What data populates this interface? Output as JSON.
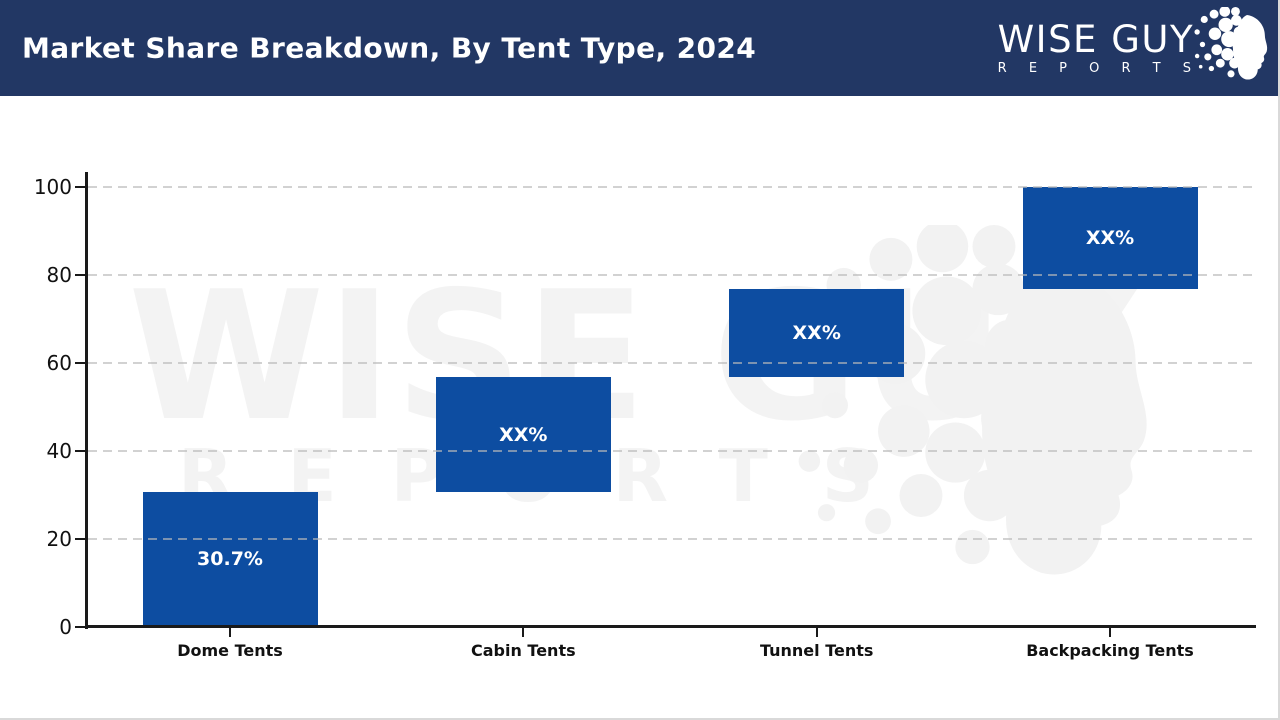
{
  "header": {
    "title": "Market Share Breakdown, By Tent Type, 2024",
    "logo": {
      "line1": "WISE GUY",
      "line2": "R E P O R T S"
    }
  },
  "watermark": {
    "line1": "WISE GUY",
    "line2": "REPORTS"
  },
  "colors": {
    "header_bg": "#223764",
    "bar": "#0d4da1",
    "bar_label_text": "#ffffff",
    "axis": "#1a1a1a",
    "grid": "#d9d9d9",
    "watermark": "#f3f3f3",
    "title_text": "#ffffff"
  },
  "chart_data": {
    "type": "bar",
    "subtype": "waterfall",
    "title": "Market Share Breakdown, By Tent Type, 2024",
    "categories": [
      "Dome Tents",
      "Cabin Tents",
      "Tunnel Tents",
      "Backpacking Tents"
    ],
    "segments": [
      {
        "category": "Dome Tents",
        "start": 0,
        "end": 30.7,
        "label": "30.7%"
      },
      {
        "category": "Cabin Tents",
        "start": 30.7,
        "end": 56.8,
        "label": "XX%"
      },
      {
        "category": "Tunnel Tents",
        "start": 56.8,
        "end": 76.8,
        "label": "XX%"
      },
      {
        "category": "Backpacking Tents",
        "start": 76.8,
        "end": 100,
        "label": "XX%"
      }
    ],
    "y_ticks": [
      0,
      20,
      40,
      60,
      80,
      100
    ],
    "ylim": [
      0,
      105
    ],
    "xlabel": "",
    "ylabel": "",
    "grid": "horizontal-dashed",
    "legend": "none",
    "bar_color": "#0d4da1"
  }
}
